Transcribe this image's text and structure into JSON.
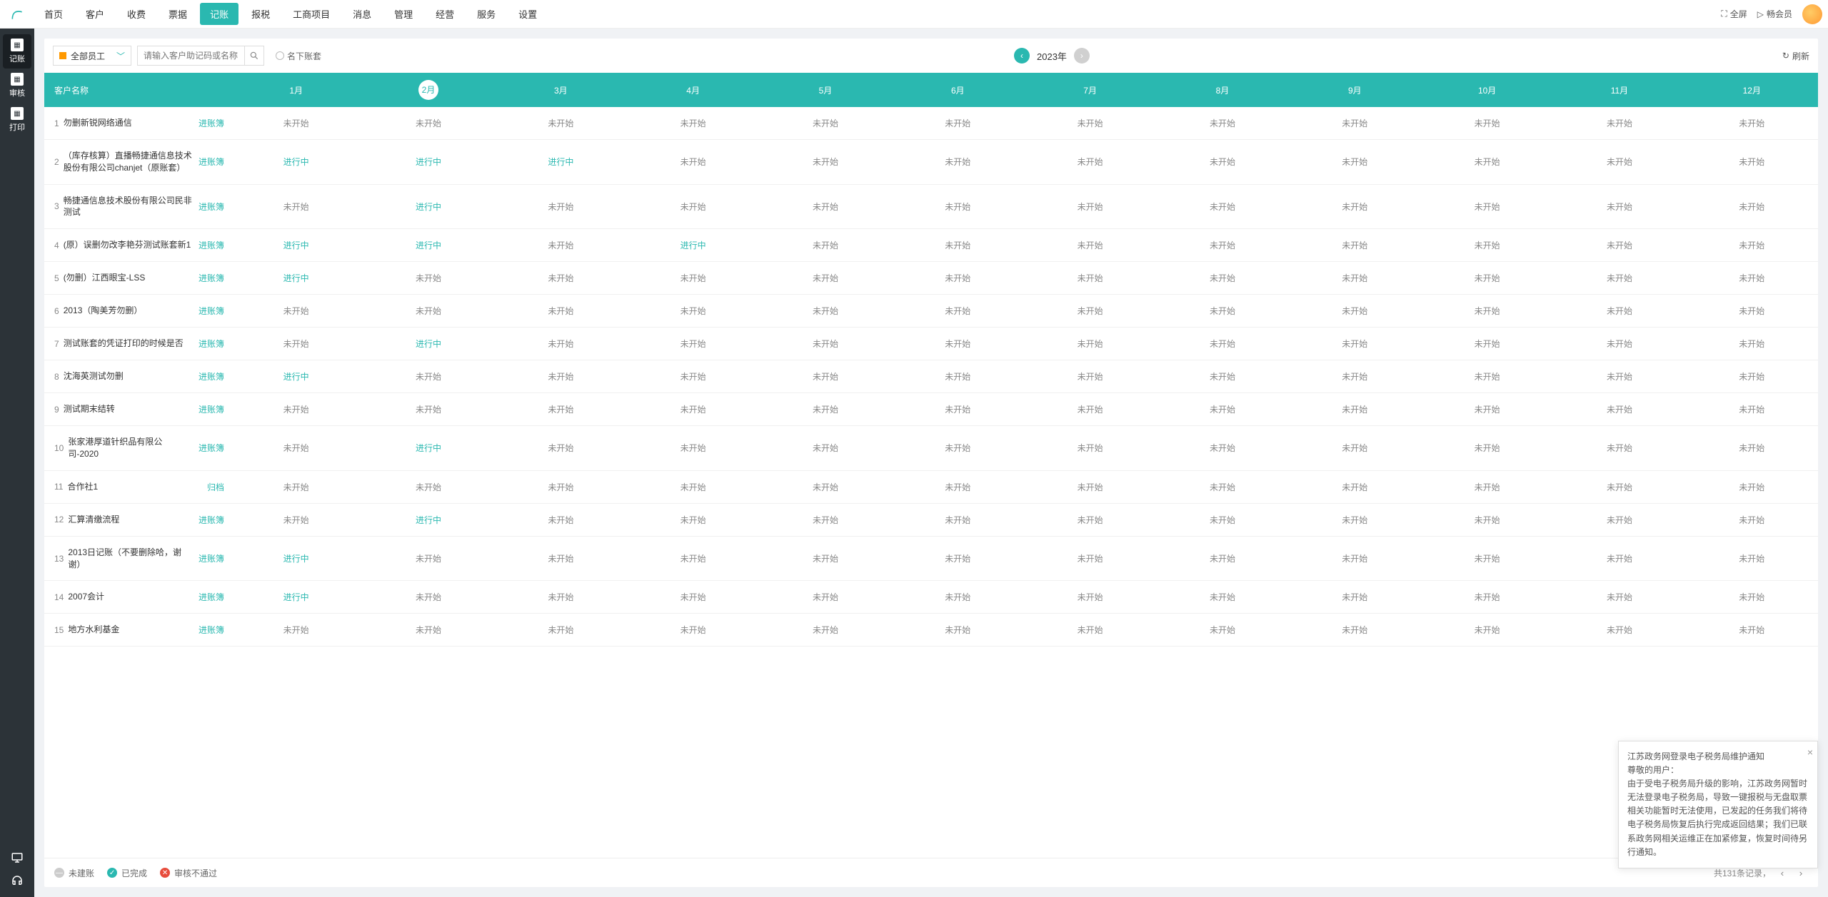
{
  "colors": {
    "accent": "#2ab8b0",
    "sidebar": "#2c3338",
    "text_muted": "#888"
  },
  "topnav": {
    "items": [
      "首页",
      "客户",
      "收费",
      "票据",
      "记账",
      "报税",
      "工商项目",
      "消息",
      "管理",
      "经营",
      "服务",
      "设置"
    ],
    "active_index": 4
  },
  "topright": {
    "fullscreen": "全屏",
    "vip": "畅会员"
  },
  "leftrail": {
    "items": [
      {
        "label": "记账"
      },
      {
        "label": "审核"
      },
      {
        "label": "打印"
      }
    ],
    "active_index": 0
  },
  "toolbar": {
    "employee_select": "全部员工",
    "search_placeholder": "请输入客户助记码或名称",
    "name_below_checkbox": "名下账套",
    "year": "2023年",
    "refresh": "刷新"
  },
  "table": {
    "name_header": "客户名称",
    "months": [
      "1月",
      "2月",
      "3月",
      "4月",
      "5月",
      "6月",
      "7月",
      "8月",
      "9月",
      "10月",
      "11月",
      "12月"
    ],
    "current_month_index": 1,
    "status_not_started": "未开始",
    "status_in_progress": "进行中",
    "ledger_label_default": "进账簿",
    "ledger_label_archive": "归档",
    "rows": [
      {
        "idx": 1,
        "name": "勿删新锐网络通信",
        "ledger": "进账簿",
        "cells": [
          "未开始",
          "未开始",
          "未开始",
          "未开始",
          "未开始",
          "未开始",
          "未开始",
          "未开始",
          "未开始",
          "未开始",
          "未开始",
          "未开始"
        ]
      },
      {
        "idx": 2,
        "name": "（库存核算）直播畅捷通信息技术股份有限公司chanjet（原账套）",
        "ledger": "进账簿",
        "cells": [
          "进行中",
          "进行中",
          "进行中",
          "未开始",
          "未开始",
          "未开始",
          "未开始",
          "未开始",
          "未开始",
          "未开始",
          "未开始",
          "未开始"
        ]
      },
      {
        "idx": 3,
        "name": "畅捷通信息技术股份有限公司民非测试",
        "ledger": "进账簿",
        "cells": [
          "未开始",
          "进行中",
          "未开始",
          "未开始",
          "未开始",
          "未开始",
          "未开始",
          "未开始",
          "未开始",
          "未开始",
          "未开始",
          "未开始"
        ]
      },
      {
        "idx": 4,
        "name": "(原）误删勿改李艳芬测试账套新1",
        "ledger": "进账簿",
        "cells": [
          "进行中",
          "进行中",
          "未开始",
          "进行中",
          "未开始",
          "未开始",
          "未开始",
          "未开始",
          "未开始",
          "未开始",
          "未开始",
          "未开始"
        ]
      },
      {
        "idx": 5,
        "name": "(勿删）江西眼宝-LSS",
        "ledger": "进账簿",
        "cells": [
          "进行中",
          "未开始",
          "未开始",
          "未开始",
          "未开始",
          "未开始",
          "未开始",
          "未开始",
          "未开始",
          "未开始",
          "未开始",
          "未开始"
        ]
      },
      {
        "idx": 6,
        "name": "2013（陶美芳勿删）",
        "ledger": "进账簿",
        "cells": [
          "未开始",
          "未开始",
          "未开始",
          "未开始",
          "未开始",
          "未开始",
          "未开始",
          "未开始",
          "未开始",
          "未开始",
          "未开始",
          "未开始"
        ]
      },
      {
        "idx": 7,
        "name": "测试账套的凭证打印的时候是否",
        "ledger": "进账簿",
        "cells": [
          "未开始",
          "进行中",
          "未开始",
          "未开始",
          "未开始",
          "未开始",
          "未开始",
          "未开始",
          "未开始",
          "未开始",
          "未开始",
          "未开始"
        ]
      },
      {
        "idx": 8,
        "name": "沈海英测试勿删",
        "ledger": "进账簿",
        "cells": [
          "进行中",
          "未开始",
          "未开始",
          "未开始",
          "未开始",
          "未开始",
          "未开始",
          "未开始",
          "未开始",
          "未开始",
          "未开始",
          "未开始"
        ]
      },
      {
        "idx": 9,
        "name": "测试期末结转",
        "ledger": "进账簿",
        "cells": [
          "未开始",
          "未开始",
          "未开始",
          "未开始",
          "未开始",
          "未开始",
          "未开始",
          "未开始",
          "未开始",
          "未开始",
          "未开始",
          "未开始"
        ]
      },
      {
        "idx": 10,
        "name": "张家港厚道针织品有限公司-2020",
        "ledger": "进账簿",
        "cells": [
          "未开始",
          "进行中",
          "未开始",
          "未开始",
          "未开始",
          "未开始",
          "未开始",
          "未开始",
          "未开始",
          "未开始",
          "未开始",
          "未开始"
        ]
      },
      {
        "idx": 11,
        "name": "合作社1",
        "ledger": "归档",
        "cells": [
          "未开始",
          "未开始",
          "未开始",
          "未开始",
          "未开始",
          "未开始",
          "未开始",
          "未开始",
          "未开始",
          "未开始",
          "未开始",
          "未开始"
        ]
      },
      {
        "idx": 12,
        "name": "汇算清缴流程",
        "ledger": "进账簿",
        "cells": [
          "未开始",
          "进行中",
          "未开始",
          "未开始",
          "未开始",
          "未开始",
          "未开始",
          "未开始",
          "未开始",
          "未开始",
          "未开始",
          "未开始"
        ]
      },
      {
        "idx": 13,
        "name": "2013日记账（不要删除哈，谢谢）",
        "ledger": "进账簿",
        "cells": [
          "进行中",
          "未开始",
          "未开始",
          "未开始",
          "未开始",
          "未开始",
          "未开始",
          "未开始",
          "未开始",
          "未开始",
          "未开始",
          "未开始"
        ]
      },
      {
        "idx": 14,
        "name": "2007会计",
        "ledger": "进账簿",
        "cells": [
          "进行中",
          "未开始",
          "未开始",
          "未开始",
          "未开始",
          "未开始",
          "未开始",
          "未开始",
          "未开始",
          "未开始",
          "未开始",
          "未开始"
        ]
      },
      {
        "idx": 15,
        "name": "地方水利基金",
        "ledger": "进账簿",
        "cells": [
          "未开始",
          "未开始",
          "未开始",
          "未开始",
          "未开始",
          "未开始",
          "未开始",
          "未开始",
          "未开始",
          "未开始",
          "未开始",
          "未开始"
        ]
      }
    ]
  },
  "footer": {
    "legend_not_built": "未建账",
    "legend_done": "已完成",
    "legend_rejected": "审核不通过",
    "total_text": "共131条记录，"
  },
  "notice": {
    "title": "江苏政务网登录电子税务局维护通知",
    "greeting": "尊敬的用户：",
    "body": "由于受电子税务局升级的影响，江苏政务网暂时无法登录电子税务局，导致一键报税与无盘取票相关功能暂时无法使用，已发起的任务我们将待电子税务局恢复后执行完成返回结果；我们已联系政务网相关运维正在加紧修复，恢复时间待另行通知。"
  }
}
